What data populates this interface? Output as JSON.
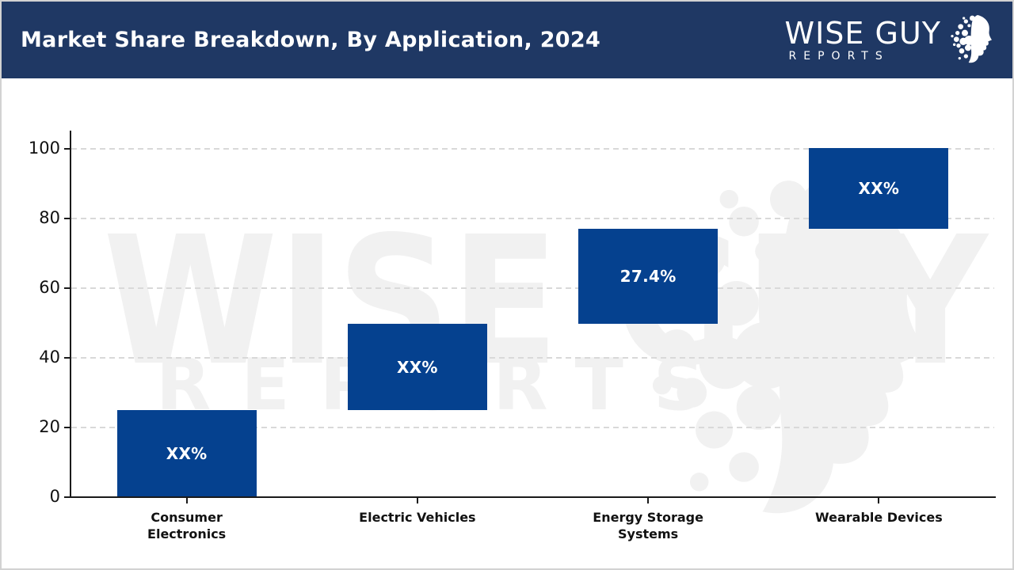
{
  "header": {
    "title": "Market Share Breakdown, By Application, 2024",
    "brand": {
      "line1": "WISE GUY",
      "line2": "REPORTS"
    }
  },
  "watermark": {
    "line1": "WISE GUY",
    "line2": "REPORTS"
  },
  "colors": {
    "header_bg": "#1f3864",
    "bar_fill": "#05418f",
    "bar_label_text": "#ffffff",
    "axis": "#1a1a1a",
    "grid": "#d9d9d9",
    "tick_text": "#111111",
    "watermark": "#f1f1f1",
    "page_border": "#d2d2d2"
  },
  "chart_data": {
    "type": "bar",
    "subtype": "floating-waterfall",
    "title": "Market Share Breakdown, By Application, 2024",
    "categories": [
      "Consumer\nElectronics",
      "Electric Vehicles",
      "Energy Storage\nSystems",
      "Wearable Devices"
    ],
    "series": [
      {
        "name": "Market share (%)",
        "segments": [
          {
            "category": "Consumer Electronics",
            "start": 0,
            "end": 24.7,
            "label": "XX%"
          },
          {
            "category": "Electric Vehicles",
            "start": 24.7,
            "end": 49.5,
            "label": "XX%"
          },
          {
            "category": "Energy Storage Systems",
            "start": 49.5,
            "end": 76.9,
            "label": "27.4%"
          },
          {
            "category": "Wearable Devices",
            "start": 76.9,
            "end": 100,
            "label": "XX%"
          }
        ]
      }
    ],
    "xlabel": "",
    "ylabel": "",
    "yticks": [
      0,
      20,
      40,
      60,
      80,
      100
    ],
    "ylim": [
      0,
      105
    ],
    "grid": "horizontal-dashed",
    "legend": "none"
  }
}
